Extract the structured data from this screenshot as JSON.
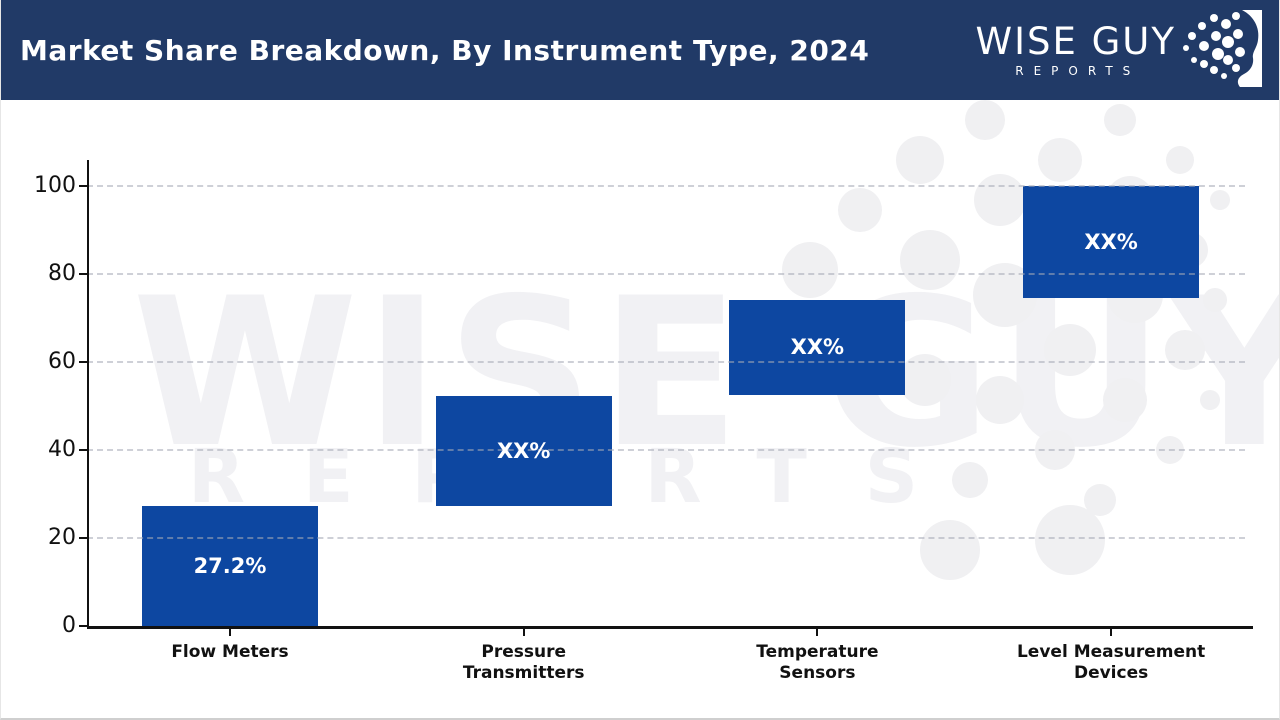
{
  "header": {
    "title": "Market Share Breakdown, By Instrument Type, 2024",
    "background_color": "#213a67",
    "logo": {
      "line1": "WISE GUY",
      "line2": "REPORTS"
    }
  },
  "watermark": {
    "line1": "WISE GUY",
    "line2": "REPORTS",
    "color": "#f1f1f4"
  },
  "chart_data": {
    "type": "bar",
    "subtype": "waterfall",
    "title": "Market Share Breakdown, By Instrument Type, 2024",
    "categories": [
      "Flow Meters",
      "Pressure\nTransmitters",
      "Temperature\nSensors",
      "Level Measurement\nDevices"
    ],
    "segments": [
      {
        "start": 0,
        "end": 27.2,
        "label": "27.2%"
      },
      {
        "start": 27.2,
        "end": 52.2,
        "label": "XX%"
      },
      {
        "start": 52.5,
        "end": 74.2,
        "label": "XX%"
      },
      {
        "start": 74.5,
        "end": 100,
        "label": "XX%"
      }
    ],
    "yticks": [
      0,
      20,
      40,
      60,
      80,
      100
    ],
    "ylim": [
      0,
      105
    ],
    "xlabel": "",
    "ylabel": "",
    "bar_color": "#0d47a1",
    "label_color": "#ffffff",
    "grid": true,
    "gridline_style": "dashed",
    "legend": "none"
  }
}
